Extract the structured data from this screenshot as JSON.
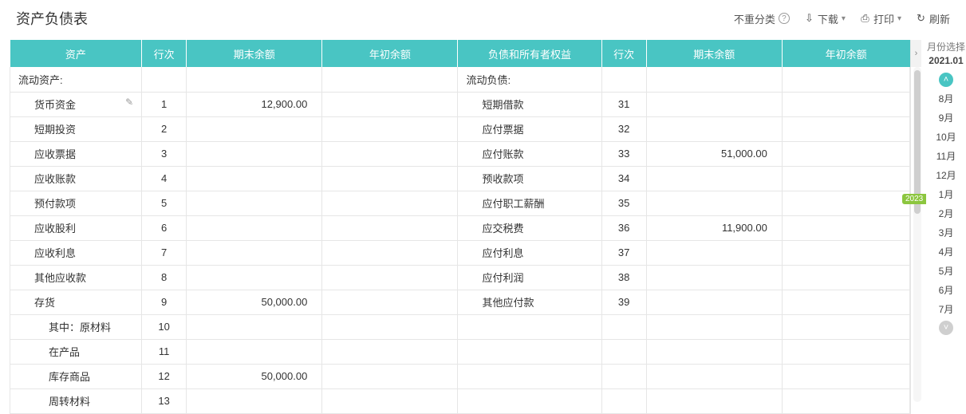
{
  "header": {
    "title": "资产负债表",
    "reclassify": "不重分类",
    "download": "下载",
    "print": "打印",
    "refresh": "刷新"
  },
  "table": {
    "columns": {
      "asset": "资产",
      "line": "行次",
      "end_balance": "期末余额",
      "begin_balance": "年初余额",
      "liab": "负债和所有者权益",
      "line2": "行次",
      "end_balance2": "期末余额",
      "begin_balance2": "年初余额"
    },
    "rows": [
      {
        "asset": "流动资产:",
        "apad": 0,
        "line": "",
        "end": "",
        "begin": "",
        "liab": "流动负债:",
        "lpad": 0,
        "line2": "",
        "end2": "",
        "begin2": "",
        "editable": false
      },
      {
        "asset": "货币资金",
        "apad": 1,
        "line": "1",
        "end": "12,900.00",
        "begin": "",
        "liab": "短期借款",
        "lpad": 1,
        "line2": "31",
        "end2": "",
        "begin2": "",
        "editable": true
      },
      {
        "asset": "短期投资",
        "apad": 1,
        "line": "2",
        "end": "",
        "begin": "",
        "liab": "应付票据",
        "lpad": 1,
        "line2": "32",
        "end2": "",
        "begin2": ""
      },
      {
        "asset": "应收票据",
        "apad": 1,
        "line": "3",
        "end": "",
        "begin": "",
        "liab": "应付账款",
        "lpad": 1,
        "line2": "33",
        "end2": "51,000.00",
        "begin2": ""
      },
      {
        "asset": "应收账款",
        "apad": 1,
        "line": "4",
        "end": "",
        "begin": "",
        "liab": "预收款项",
        "lpad": 1,
        "line2": "34",
        "end2": "",
        "begin2": ""
      },
      {
        "asset": "预付款项",
        "apad": 1,
        "line": "5",
        "end": "",
        "begin": "",
        "liab": "应付职工薪酬",
        "lpad": 1,
        "line2": "35",
        "end2": "",
        "begin2": ""
      },
      {
        "asset": "应收股利",
        "apad": 1,
        "line": "6",
        "end": "",
        "begin": "",
        "liab": "应交税费",
        "lpad": 1,
        "line2": "36",
        "end2": "11,900.00",
        "begin2": ""
      },
      {
        "asset": "应收利息",
        "apad": 1,
        "line": "7",
        "end": "",
        "begin": "",
        "liab": "应付利息",
        "lpad": 1,
        "line2": "37",
        "end2": "",
        "begin2": ""
      },
      {
        "asset": "其他应收款",
        "apad": 1,
        "line": "8",
        "end": "",
        "begin": "",
        "liab": "应付利润",
        "lpad": 1,
        "line2": "38",
        "end2": "",
        "begin2": ""
      },
      {
        "asset": "存货",
        "apad": 1,
        "line": "9",
        "end": "50,000.00",
        "begin": "",
        "liab": "其他应付款",
        "lpad": 1,
        "line2": "39",
        "end2": "",
        "begin2": ""
      },
      {
        "asset": "其中：原材料",
        "apad": 2,
        "line": "10",
        "end": "",
        "begin": "",
        "liab": "",
        "lpad": 0,
        "line2": "",
        "end2": "",
        "begin2": ""
      },
      {
        "asset": "在产品",
        "apad": 2,
        "line": "11",
        "end": "",
        "begin": "",
        "liab": "",
        "lpad": 0,
        "line2": "",
        "end2": "",
        "begin2": ""
      },
      {
        "asset": "库存商品",
        "apad": 2,
        "line": "12",
        "end": "50,000.00",
        "begin": "",
        "liab": "",
        "lpad": 0,
        "line2": "",
        "end2": "",
        "begin2": ""
      },
      {
        "asset": "周转材料",
        "apad": 2,
        "line": "13",
        "end": "",
        "begin": "",
        "liab": "",
        "lpad": 0,
        "line2": "",
        "end2": "",
        "begin2": ""
      }
    ]
  },
  "monthPanel": {
    "label": "月份选择",
    "year": "2021.01",
    "badgeYear": "2023",
    "months": [
      "8月",
      "9月",
      "10月",
      "11月",
      "12月",
      "1月",
      "2月",
      "3月",
      "4月",
      "5月",
      "6月",
      "7月"
    ]
  },
  "style": {
    "header_bg": "#49c5c3",
    "border": "#e6e6e6",
    "badge": "#8cc63f"
  }
}
